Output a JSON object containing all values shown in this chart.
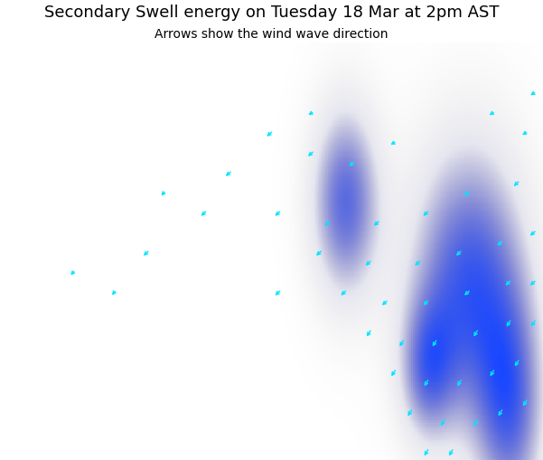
{
  "title": "Secondary Swell energy on Tuesday 18 Mar at 2pm AST",
  "subtitle": "Arrows show the wind wave direction",
  "title_fontsize": 13,
  "subtitle_fontsize": 10,
  "title_color": "#000000",
  "bg_color": "#ffffff",
  "ocean_color": "#000005",
  "arrow_color": "#00e5ff",
  "arrow_size": 6,
  "map_extent": [
    -85,
    -52,
    7,
    28
  ],
  "swell_blobs": [
    {
      "lon": -64.0,
      "lat": 20.0,
      "strength": 180,
      "sigma_lon": 1.5,
      "sigma_lat": 3.5
    },
    {
      "lon": -56.5,
      "lat": 16.0,
      "strength": 200,
      "sigma_lon": 2.5,
      "sigma_lat": 5.0
    },
    {
      "lon": -54.0,
      "lat": 9.5,
      "strength": 160,
      "sigma_lon": 1.5,
      "sigma_lat": 4.0
    },
    {
      "lon": -59.0,
      "lat": 11.5,
      "strength": 130,
      "sigma_lon": 1.2,
      "sigma_lat": 2.5
    }
  ],
  "arrows": [
    {
      "lon": -68.5,
      "lat": 23.5,
      "adx": -0.4,
      "ady": -0.3
    },
    {
      "lon": -66.0,
      "lat": 22.5,
      "adx": -0.4,
      "ady": -0.3
    },
    {
      "lon": -63.5,
      "lat": 22.0,
      "adx": -0.4,
      "ady": -0.3
    },
    {
      "lon": -71.0,
      "lat": 21.5,
      "adx": -0.4,
      "ady": -0.3
    },
    {
      "lon": -75.0,
      "lat": 20.5,
      "adx": -0.3,
      "ady": -0.3
    },
    {
      "lon": -72.5,
      "lat": 19.5,
      "adx": -0.4,
      "ady": -0.3
    },
    {
      "lon": -68.0,
      "lat": 19.5,
      "adx": -0.4,
      "ady": -0.3
    },
    {
      "lon": -65.0,
      "lat": 19.0,
      "adx": -0.4,
      "ady": -0.3
    },
    {
      "lon": -62.0,
      "lat": 19.0,
      "adx": -0.4,
      "ady": -0.3
    },
    {
      "lon": -59.0,
      "lat": 19.5,
      "adx": -0.4,
      "ady": -0.3
    },
    {
      "lon": -56.5,
      "lat": 20.5,
      "adx": -0.4,
      "ady": -0.3
    },
    {
      "lon": -53.5,
      "lat": 21.0,
      "adx": -0.4,
      "ady": -0.3
    },
    {
      "lon": -65.5,
      "lat": 17.5,
      "adx": -0.4,
      "ady": -0.3
    },
    {
      "lon": -62.5,
      "lat": 17.0,
      "adx": -0.4,
      "ady": -0.3
    },
    {
      "lon": -59.5,
      "lat": 17.0,
      "adx": -0.4,
      "ady": -0.3
    },
    {
      "lon": -57.0,
      "lat": 17.5,
      "adx": -0.4,
      "ady": -0.3
    },
    {
      "lon": -54.5,
      "lat": 18.0,
      "adx": -0.4,
      "ady": -0.3
    },
    {
      "lon": -52.5,
      "lat": 18.5,
      "adx": -0.4,
      "ady": -0.3
    },
    {
      "lon": -64.0,
      "lat": 15.5,
      "adx": -0.4,
      "ady": -0.3
    },
    {
      "lon": -61.5,
      "lat": 15.0,
      "adx": -0.4,
      "ady": -0.3
    },
    {
      "lon": -59.0,
      "lat": 15.0,
      "adx": -0.4,
      "ady": -0.3
    },
    {
      "lon": -56.5,
      "lat": 15.5,
      "adx": -0.4,
      "ady": -0.3
    },
    {
      "lon": -54.0,
      "lat": 16.0,
      "adx": -0.4,
      "ady": -0.3
    },
    {
      "lon": -52.5,
      "lat": 16.0,
      "adx": -0.4,
      "ady": -0.3
    },
    {
      "lon": -62.5,
      "lat": 13.5,
      "adx": -0.3,
      "ady": -0.4
    },
    {
      "lon": -60.5,
      "lat": 13.0,
      "adx": -0.3,
      "ady": -0.4
    },
    {
      "lon": -58.5,
      "lat": 13.0,
      "adx": -0.3,
      "ady": -0.4
    },
    {
      "lon": -56.0,
      "lat": 13.5,
      "adx": -0.3,
      "ady": -0.4
    },
    {
      "lon": -54.0,
      "lat": 14.0,
      "adx": -0.3,
      "ady": -0.4
    },
    {
      "lon": -52.5,
      "lat": 14.0,
      "adx": -0.3,
      "ady": -0.4
    },
    {
      "lon": -61.0,
      "lat": 11.5,
      "adx": -0.3,
      "ady": -0.4
    },
    {
      "lon": -59.0,
      "lat": 11.0,
      "adx": -0.3,
      "ady": -0.4
    },
    {
      "lon": -57.0,
      "lat": 11.0,
      "adx": -0.3,
      "ady": -0.4
    },
    {
      "lon": -55.0,
      "lat": 11.5,
      "adx": -0.3,
      "ady": -0.4
    },
    {
      "lon": -53.5,
      "lat": 12.0,
      "adx": -0.3,
      "ady": -0.4
    },
    {
      "lon": -60.0,
      "lat": 9.5,
      "adx": -0.3,
      "ady": -0.4
    },
    {
      "lon": -58.0,
      "lat": 9.0,
      "adx": -0.3,
      "ady": -0.4
    },
    {
      "lon": -56.0,
      "lat": 9.0,
      "adx": -0.3,
      "ady": -0.4
    },
    {
      "lon": -54.5,
      "lat": 9.5,
      "adx": -0.3,
      "ady": -0.4
    },
    {
      "lon": -53.0,
      "lat": 10.0,
      "adx": -0.3,
      "ady": -0.4
    },
    {
      "lon": -59.0,
      "lat": 7.5,
      "adx": -0.3,
      "ady": -0.4
    },
    {
      "lon": -57.5,
      "lat": 7.5,
      "adx": -0.3,
      "ady": -0.4
    },
    {
      "lon": -80.5,
      "lat": 16.5,
      "adx": -0.3,
      "ady": -0.3
    },
    {
      "lon": -78.0,
      "lat": 15.5,
      "adx": -0.3,
      "ady": -0.3
    },
    {
      "lon": -66.0,
      "lat": 24.5,
      "adx": -0.4,
      "ady": -0.2
    },
    {
      "lon": -61.0,
      "lat": 23.0,
      "adx": -0.4,
      "ady": -0.2
    },
    {
      "lon": -53.0,
      "lat": 23.5,
      "adx": -0.4,
      "ady": -0.2
    },
    {
      "lon": -55.0,
      "lat": 24.5,
      "adx": -0.4,
      "ady": -0.2
    },
    {
      "lon": -52.5,
      "lat": 25.5,
      "adx": -0.4,
      "ady": -0.2
    },
    {
      "lon": -76.0,
      "lat": 17.5,
      "adx": -0.4,
      "ady": -0.3
    },
    {
      "lon": -68.0,
      "lat": 15.5,
      "adx": -0.4,
      "ady": -0.3
    }
  ]
}
